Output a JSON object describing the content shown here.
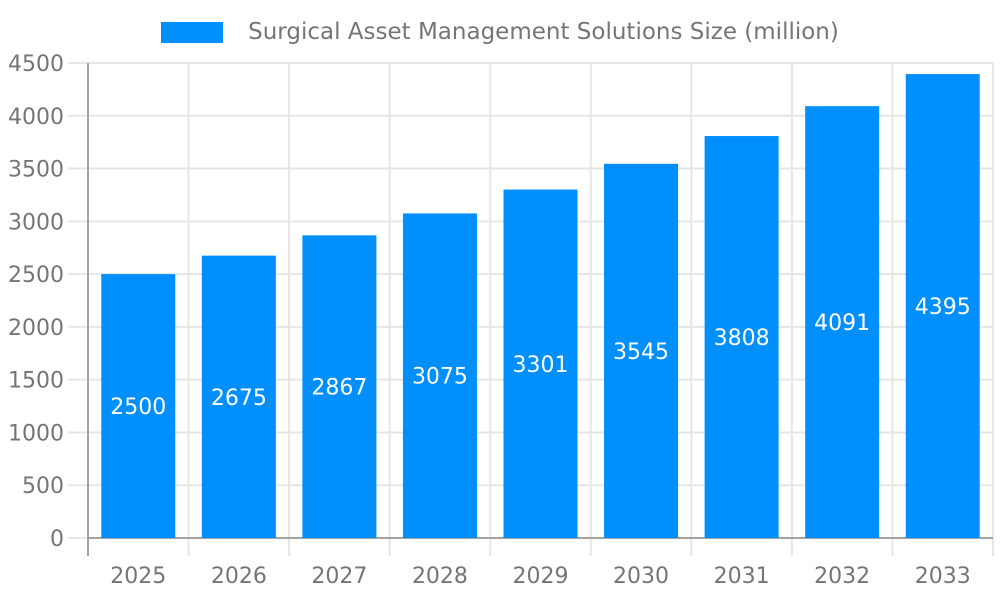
{
  "legend": {
    "label": "Surgical Asset Management Solutions Size (million)"
  },
  "chart_data": {
    "type": "bar",
    "title": "Surgical Asset Management Solutions Size (million)",
    "categories": [
      "2025",
      "2026",
      "2027",
      "2028",
      "2029",
      "2030",
      "2031",
      "2032",
      "2033"
    ],
    "series": [
      {
        "name": "Surgical Asset Management Solutions Size (million)",
        "values": [
          2500,
          2675,
          2867,
          3075,
          3301,
          3545,
          3808,
          4091,
          4395
        ]
      }
    ],
    "xlabel": "",
    "ylabel": "",
    "ylim": [
      0,
      4500
    ],
    "y_tick_step": 500,
    "y_ticks": [
      0,
      500,
      1000,
      1500,
      2000,
      2500,
      3000,
      3500,
      4000,
      4500
    ],
    "grid": true,
    "legend_position": "top-center",
    "bar_labels_inside": true,
    "colors": {
      "bar": "#008FFB",
      "bar_label": "#ffffff",
      "axis_label": "#757575",
      "grid_line": "#e6e6e6",
      "axis_line": "#a3a3a3",
      "background": "#ffffff"
    }
  }
}
